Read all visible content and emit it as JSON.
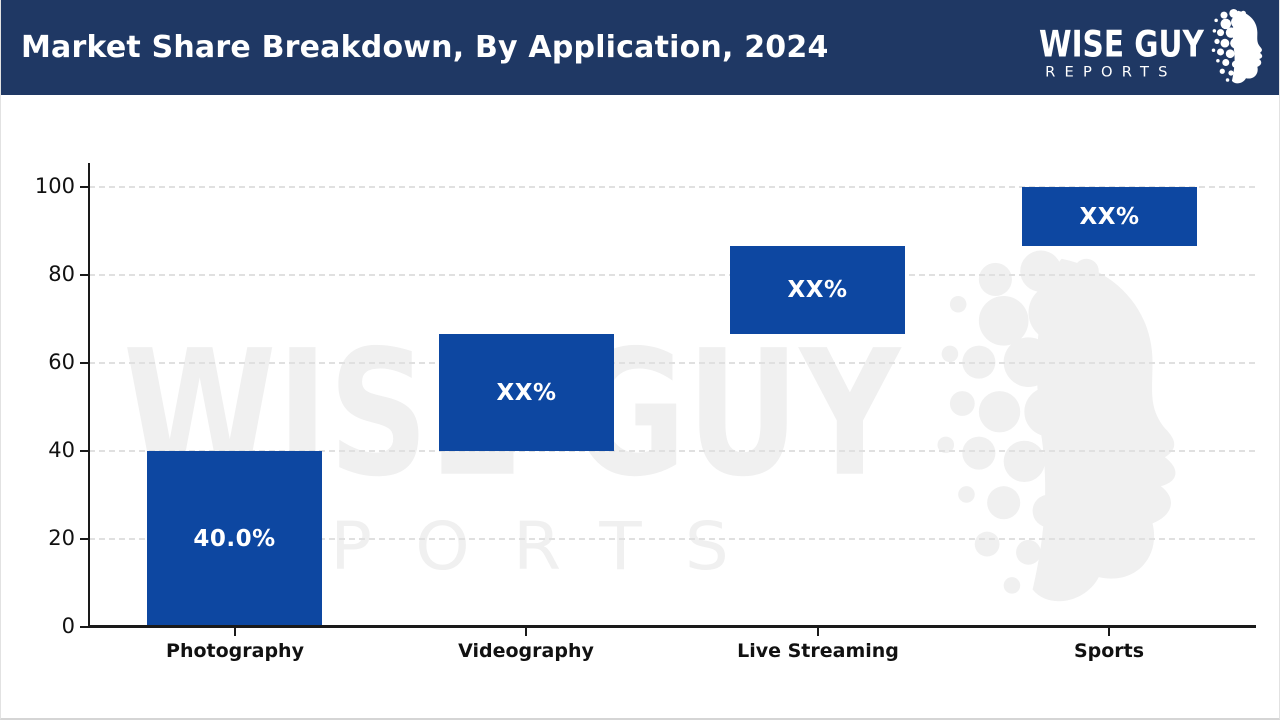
{
  "header": {
    "title": "Market Share Breakdown, By Application, 2024",
    "logo": {
      "line1": "WISE GUY",
      "line2": "REPORTS"
    }
  },
  "watermark": {
    "line1": "WISE GUY",
    "line2": "REPORTS"
  },
  "chart_data": {
    "type": "bar",
    "variant": "waterfall",
    "title": "Market Share Breakdown, By Application, 2024",
    "categories": [
      "Photography",
      "Videography",
      "Live Streaming",
      "Sports"
    ],
    "segments": [
      {
        "category": "Photography",
        "start": 0,
        "end": 40,
        "label": "40.0%"
      },
      {
        "category": "Videography",
        "start": 40,
        "end": 66.7,
        "label": "XX%"
      },
      {
        "category": "Live Streaming",
        "start": 66.7,
        "end": 86.7,
        "label": "XX%"
      },
      {
        "category": "Sports",
        "start": 86.7,
        "end": 100,
        "label": "XX%"
      }
    ],
    "ylim": [
      0,
      100
    ],
    "yticks": [
      0,
      20,
      40,
      60,
      80,
      100
    ],
    "xlabel": "",
    "ylabel": "",
    "grid": "horizontal-dashed",
    "legend": "none",
    "colors": {
      "bar": "#0d47a1",
      "bar_label": "#ffffff",
      "header_bg": "#1f3864",
      "gridline": "#e0e0e0",
      "axis": "#1a1a1a",
      "tick_text": "#111111",
      "watermark": "#f0f0f0",
      "background": "#ffffff"
    }
  }
}
